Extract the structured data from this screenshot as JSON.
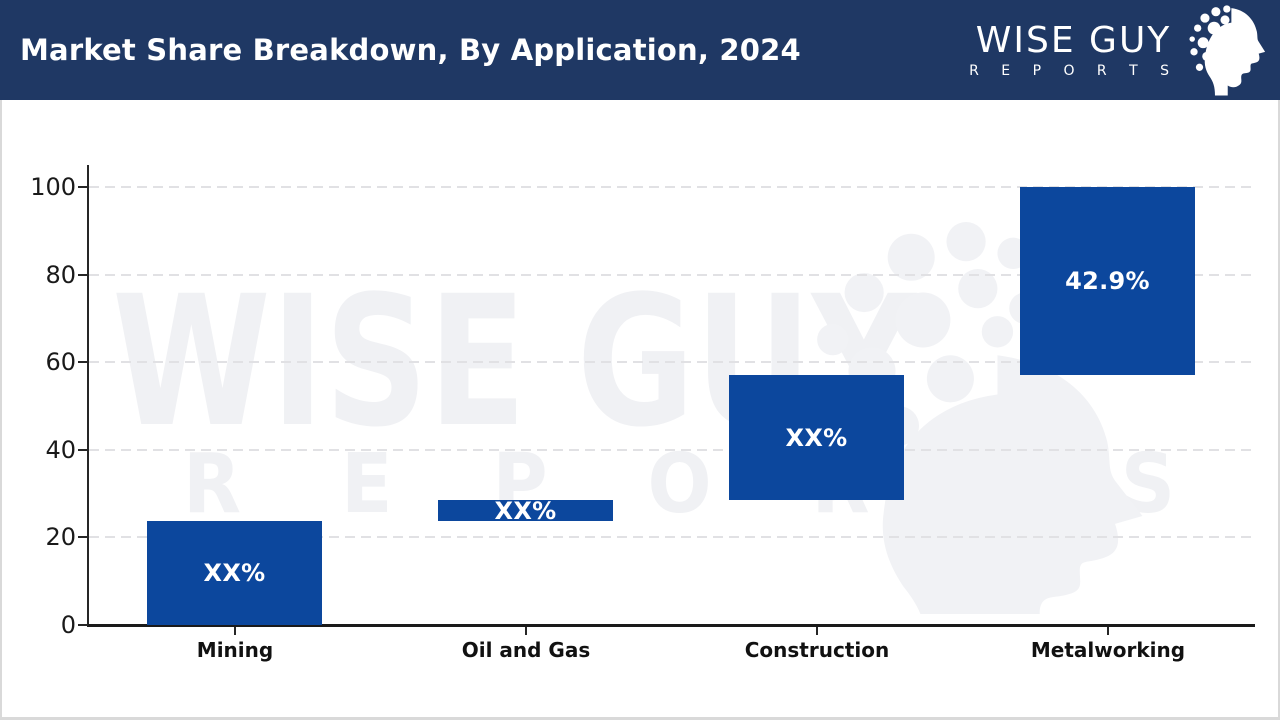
{
  "header": {
    "title": "Market Share Breakdown, By Application, 2024",
    "logo": {
      "line1": "WISE GUY",
      "line2": "R E P O R T S",
      "icon": "head-profile-dots-icon"
    }
  },
  "watermark": {
    "line1": "WISE GUY",
    "line2": "R E P O R T S",
    "figure_icon": "head-profile-dots-icon"
  },
  "colors": {
    "header_bg": "#1f3864",
    "bar": "#0c479d",
    "bar_label": "#ffffff",
    "axis": "#1a1a1a",
    "gridline": "#e0e0e4",
    "frame_border": "#d9d9d9",
    "watermark": "#f0f1f4"
  },
  "chart_data": {
    "type": "bar",
    "variant": "floating_waterfall",
    "title": "Market Share Breakdown, By Application, 2024",
    "categories": [
      "Mining",
      "Oil and Gas",
      "Construction",
      "Metalworking"
    ],
    "bars": [
      {
        "category": "Mining",
        "base": 0,
        "top": 23.8,
        "size_pct": 23.8,
        "label": "XX%"
      },
      {
        "category": "Oil and Gas",
        "base": 23.8,
        "top": 28.6,
        "size_pct": 4.8,
        "label": "XX%"
      },
      {
        "category": "Construction",
        "base": 28.6,
        "top": 57.1,
        "size_pct": 28.5,
        "label": "XX%"
      },
      {
        "category": "Metalworking",
        "base": 57.1,
        "top": 100,
        "size_pct": 42.9,
        "label": "42.9%"
      }
    ],
    "xlabel": "",
    "ylabel": "",
    "ylim": [
      0,
      100
    ],
    "yticks": [
      0,
      20,
      40,
      60,
      80,
      100
    ],
    "grid": "horizontal_dashed",
    "legend": "none"
  }
}
